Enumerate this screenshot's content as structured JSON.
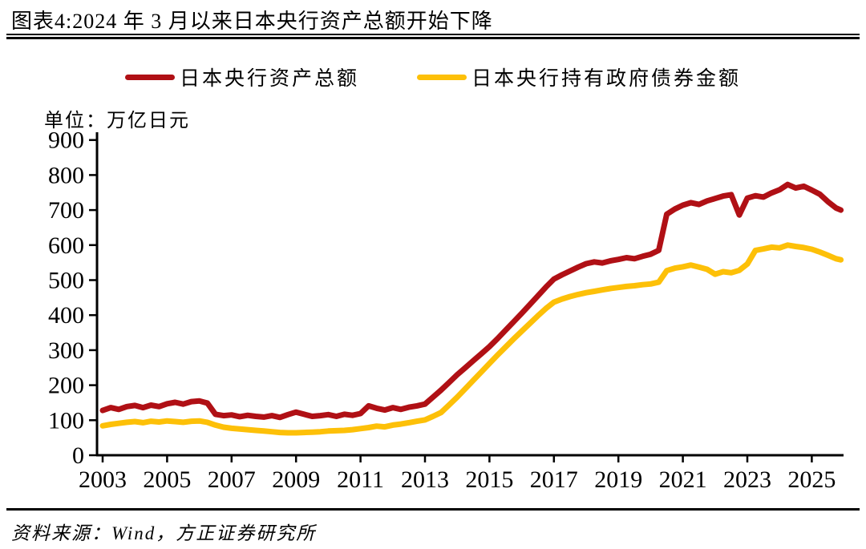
{
  "header": {
    "title": "图表4:2024 年 3 月以来日本央行资产总额开始下降"
  },
  "unit_label": "单位：万亿日元",
  "source": "资料来源：Wind，方正证券研究所",
  "colors": {
    "total_assets_line": "#b01015",
    "jgb_holdings_line": "#fdc008",
    "axis": "#000000",
    "background": "#ffffff"
  },
  "legend": [
    {
      "label": "日本央行资产总额",
      "color": "#b01015"
    },
    {
      "label": "日本央行持有政府债券金额",
      "color": "#fdc008"
    }
  ],
  "chart_data": {
    "type": "line",
    "title": "图表4:2024 年 3 月以来日本央行资产总额开始下降",
    "ylabel": "单位：万亿日元",
    "xlabel": "",
    "ylim": [
      0,
      900
    ],
    "xlim": [
      2003,
      2026
    ],
    "grid": false,
    "legend_position": "top",
    "y_ticks": [
      0,
      100,
      200,
      300,
      400,
      500,
      600,
      700,
      800,
      900
    ],
    "x_ticks": [
      2003,
      2005,
      2007,
      2009,
      2011,
      2013,
      2015,
      2017,
      2019,
      2021,
      2023,
      2025
    ],
    "x": [
      2003,
      2003.25,
      2003.5,
      2003.75,
      2004,
      2004.25,
      2004.5,
      2004.75,
      2005,
      2005.25,
      2005.5,
      2005.75,
      2006,
      2006.25,
      2006.5,
      2006.75,
      2007,
      2007.25,
      2007.5,
      2007.75,
      2008,
      2008.25,
      2008.5,
      2008.75,
      2009,
      2009.25,
      2009.5,
      2009.75,
      2010,
      2010.25,
      2010.5,
      2010.75,
      2011,
      2011.25,
      2011.5,
      2011.75,
      2012,
      2012.25,
      2012.5,
      2012.75,
      2013,
      2013.25,
      2013.5,
      2013.75,
      2014,
      2014.25,
      2014.5,
      2014.75,
      2015,
      2015.25,
      2015.5,
      2015.75,
      2016,
      2016.25,
      2016.5,
      2016.75,
      2017,
      2017.25,
      2017.5,
      2017.75,
      2018,
      2018.25,
      2018.5,
      2018.75,
      2019,
      2019.25,
      2019.5,
      2019.75,
      2020,
      2020.25,
      2020.5,
      2020.75,
      2021,
      2021.25,
      2021.5,
      2021.75,
      2022,
      2022.25,
      2022.5,
      2022.75,
      2023,
      2023.25,
      2023.5,
      2023.75,
      2024,
      2024.25,
      2024.5,
      2024.75,
      2025,
      2025.25,
      2025.5,
      2025.75,
      2025.9
    ],
    "series": [
      {
        "name": "日本央行资产总额",
        "color": "#b01015",
        "values": [
          128,
          136,
          131,
          139,
          142,
          136,
          143,
          139,
          147,
          151,
          146,
          153,
          155,
          149,
          117,
          113,
          115,
          110,
          114,
          111,
          109,
          113,
          108,
          116,
          123,
          117,
          111,
          113,
          116,
          111,
          117,
          114,
          119,
          141,
          134,
          129,
          136,
          131,
          137,
          141,
          146,
          166,
          186,
          208,
          230,
          250,
          270,
          290,
          310,
          333,
          357,
          381,
          405,
          430,
          455,
          480,
          503,
          515,
          526,
          537,
          547,
          552,
          549,
          555,
          559,
          564,
          561,
          568,
          574,
          585,
          688,
          703,
          714,
          721,
          716,
          726,
          733,
          740,
          744,
          686,
          734,
          741,
          737,
          749,
          758,
          773,
          763,
          768,
          757,
          745,
          724,
          706,
          700
        ]
      },
      {
        "name": "日本央行持有政府债券金额",
        "color": "#fdc008",
        "values": [
          84,
          88,
          91,
          94,
          96,
          93,
          97,
          95,
          98,
          96,
          94,
          97,
          98,
          94,
          86,
          80,
          77,
          75,
          73,
          71,
          69,
          67,
          65,
          64,
          64,
          65,
          66,
          67,
          69,
          70,
          71,
          73,
          76,
          79,
          83,
          81,
          86,
          89,
          93,
          97,
          101,
          111,
          122,
          144,
          166,
          190,
          214,
          238,
          262,
          286,
          309,
          332,
          354,
          376,
          398,
          419,
          437,
          446,
          453,
          459,
          464,
          468,
          472,
          476,
          479,
          482,
          484,
          487,
          489,
          494,
          527,
          534,
          538,
          543,
          537,
          531,
          517,
          524,
          521,
          528,
          546,
          585,
          589,
          594,
          592,
          600,
          596,
          593,
          588,
          580,
          571,
          561,
          558
        ]
      }
    ]
  }
}
